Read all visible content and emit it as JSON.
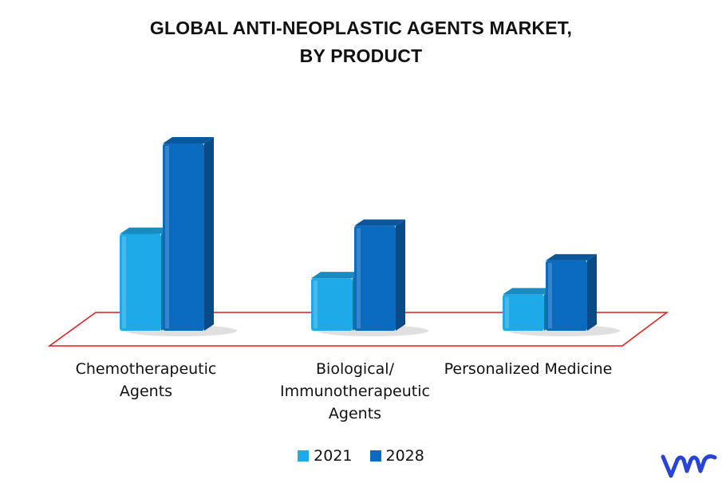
{
  "chart_data": {
    "type": "bar",
    "title_lines": [
      "GLOBAL ANTI-NEOPLASTIC AGENTS MARKET,",
      "BY PRODUCT"
    ],
    "categories": [
      "Chemotherapeutic Agents",
      "Biological/ Immunotherapeutic Agents",
      "Personalized Medicine"
    ],
    "category_label_lines": [
      [
        "Chemotherapeutic",
        "Agents"
      ],
      [
        "Biological/",
        "Immunotherapeutic",
        "Agents"
      ],
      [
        "Personalized Medicine"
      ]
    ],
    "series": [
      {
        "name": "2021",
        "color": "#1ea9e8",
        "values": [
          120,
          65,
          45
        ]
      },
      {
        "name": "2028",
        "color": "#0b6bbf",
        "values": [
          232,
          130,
          87
        ]
      }
    ],
    "ylim": [
      0,
      250
    ],
    "grid": false,
    "axes_visible": false,
    "legend_position": "bottom-center",
    "floor_outline_color": "#e01b1b"
  },
  "logo": {
    "name": "vmr-logo",
    "color": "#2743d8"
  }
}
